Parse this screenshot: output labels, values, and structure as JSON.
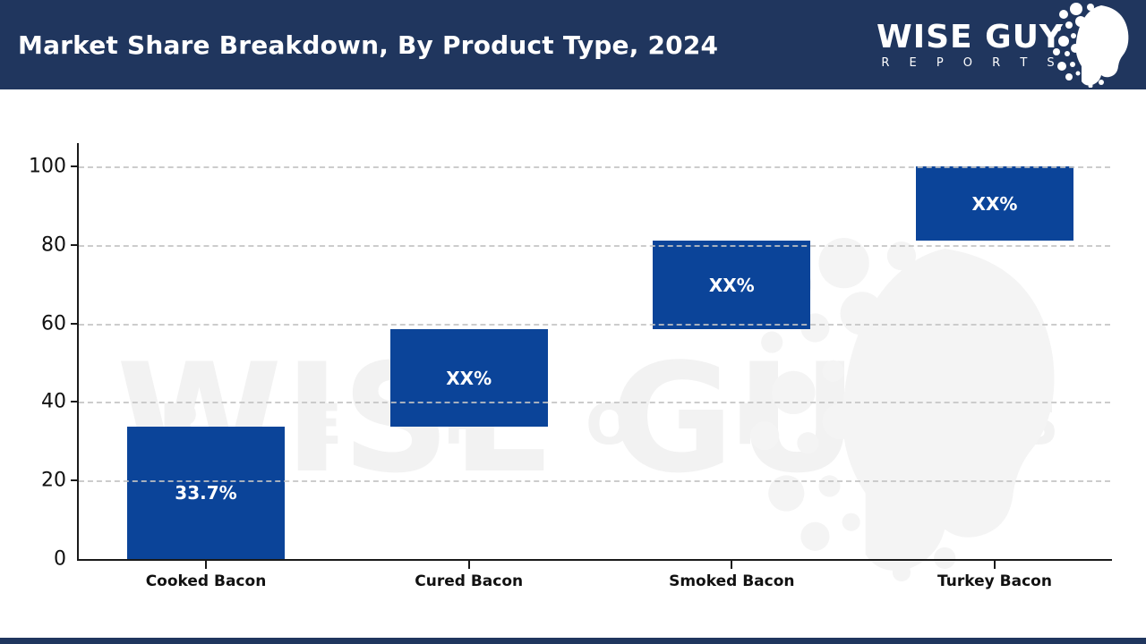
{
  "header": {
    "title": "Market Share Breakdown, By Product Type, 2024",
    "logo": {
      "line1": "WISE GUY",
      "line2": "REPORTS"
    }
  },
  "watermark": {
    "line1": "WISE GUY",
    "line2": "REPORTS"
  },
  "chart_data": {
    "type": "bar",
    "subtype": "waterfall",
    "title": "Market Share Breakdown, By Product Type, 2024",
    "categories": [
      "Cooked Bacon",
      "Cured Bacon",
      "Smoked Bacon",
      "Turkey Bacon"
    ],
    "segments": [
      {
        "category": "Cooked Bacon",
        "start": 0,
        "end": 33.7,
        "label": "33.7%"
      },
      {
        "category": "Cured Bacon",
        "start": 33.7,
        "end": 58.5,
        "label": "XX%"
      },
      {
        "category": "Smoked Bacon",
        "start": 58.5,
        "end": 81,
        "label": "XX%"
      },
      {
        "category": "Turkey Bacon",
        "start": 81,
        "end": 100,
        "label": "XX%"
      }
    ],
    "yticks": [
      0,
      20,
      40,
      60,
      80,
      100
    ],
    "ylim": [
      0,
      106
    ],
    "xlabel": "",
    "ylabel": "",
    "grid": "horizontal-dashed",
    "legend": "none",
    "bar_color": "#0b4499",
    "value_label_color": "#ffffff"
  },
  "colors": {
    "header_bg": "#20365e",
    "footer_bg": "#20365e",
    "bar": "#0b4499",
    "axis": "#1a1a1a",
    "gridline": "#c3c3c3",
    "watermark": "#f2f2f2"
  }
}
